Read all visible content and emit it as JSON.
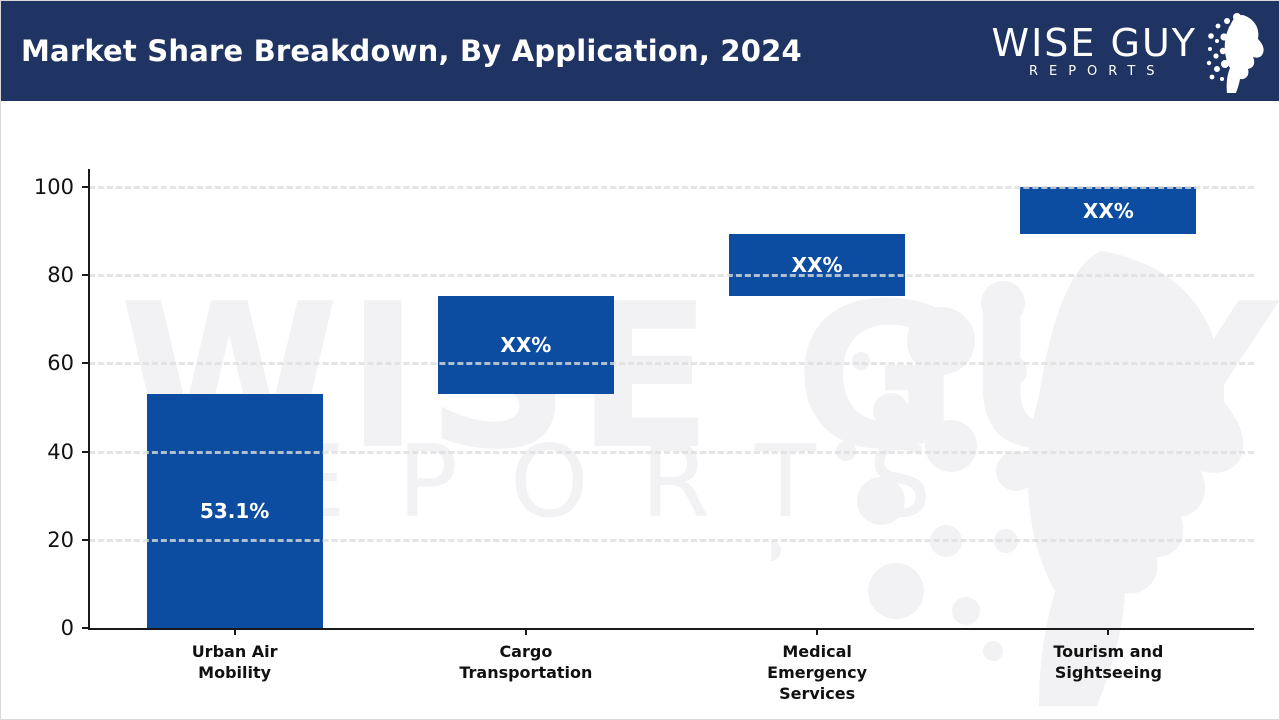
{
  "header": {
    "title": "Market Share Breakdown, By Application, 2024",
    "logo": {
      "wordmark": "WISE GUY",
      "subtitle": "REPORTS"
    },
    "bg_color": "#1f3463"
  },
  "watermark": {
    "wordmark": "WISE GUY",
    "subtitle": "REPORTS"
  },
  "chart_data": {
    "type": "bar",
    "subtype": "waterfall-stacked-breakdown",
    "title": "Market Share Breakdown, By Application, 2024",
    "categories": [
      "Urban Air Mobility",
      "Cargo Transportation",
      "Medical Emergency Services",
      "Tourism and Sightseeing"
    ],
    "segments": [
      {
        "category": "Urban Air Mobility",
        "start": 0,
        "end": 53.1,
        "label": "53.1%"
      },
      {
        "category": "Cargo Transportation",
        "start": 53.1,
        "end": 75.2,
        "label": "XX%"
      },
      {
        "category": "Medical Emergency Services",
        "start": 75.2,
        "end": 89.3,
        "label": "XX%"
      },
      {
        "category": "Tourism and Sightseeing",
        "start": 89.3,
        "end": 100,
        "label": "XX%"
      }
    ],
    "xlabel": "",
    "ylabel": "",
    "ylim": [
      0,
      100
    ],
    "yticks": [
      0,
      20,
      40,
      60,
      80,
      100
    ],
    "grid": "horizontal-dashed",
    "legend": "none",
    "bar_color": "#0d4da1",
    "axis_color": "#1a1a1a",
    "grid_color": "#dedede"
  }
}
